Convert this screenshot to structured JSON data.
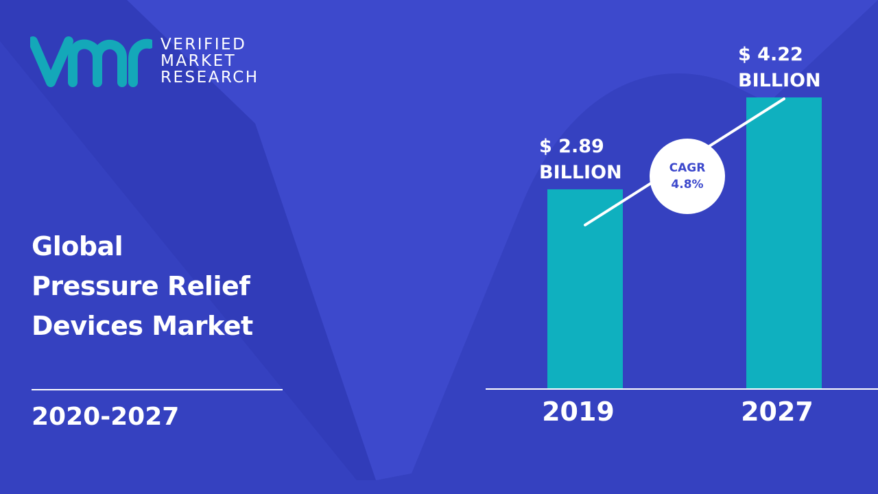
{
  "brand": {
    "logo_letters": "vmr",
    "name_lines": [
      "VERIFIED",
      "MARKET",
      "RESEARCH"
    ],
    "mark_color": "#14a8b9"
  },
  "title_lines": [
    "Global",
    "Pressure Relief",
    "Devices Market"
  ],
  "period": "2020-2027",
  "colors": {
    "background": "#3d49cc",
    "background_shape": "#2f3ab7",
    "bar": "#0fb0bf",
    "text": "#ffffff"
  },
  "chart_data": {
    "type": "bar",
    "categories": [
      "2019",
      "2027"
    ],
    "values": [
      2.89,
      4.22
    ],
    "value_labels": [
      [
        "$ 2.89",
        "BILLION"
      ],
      [
        "$ 4.22",
        "BILLION"
      ]
    ],
    "unit": "USD billion",
    "cagr": {
      "label": "CAGR",
      "value": "4.8%"
    },
    "xlabel": "",
    "ylabel": "",
    "grid": false,
    "legend": "none"
  }
}
